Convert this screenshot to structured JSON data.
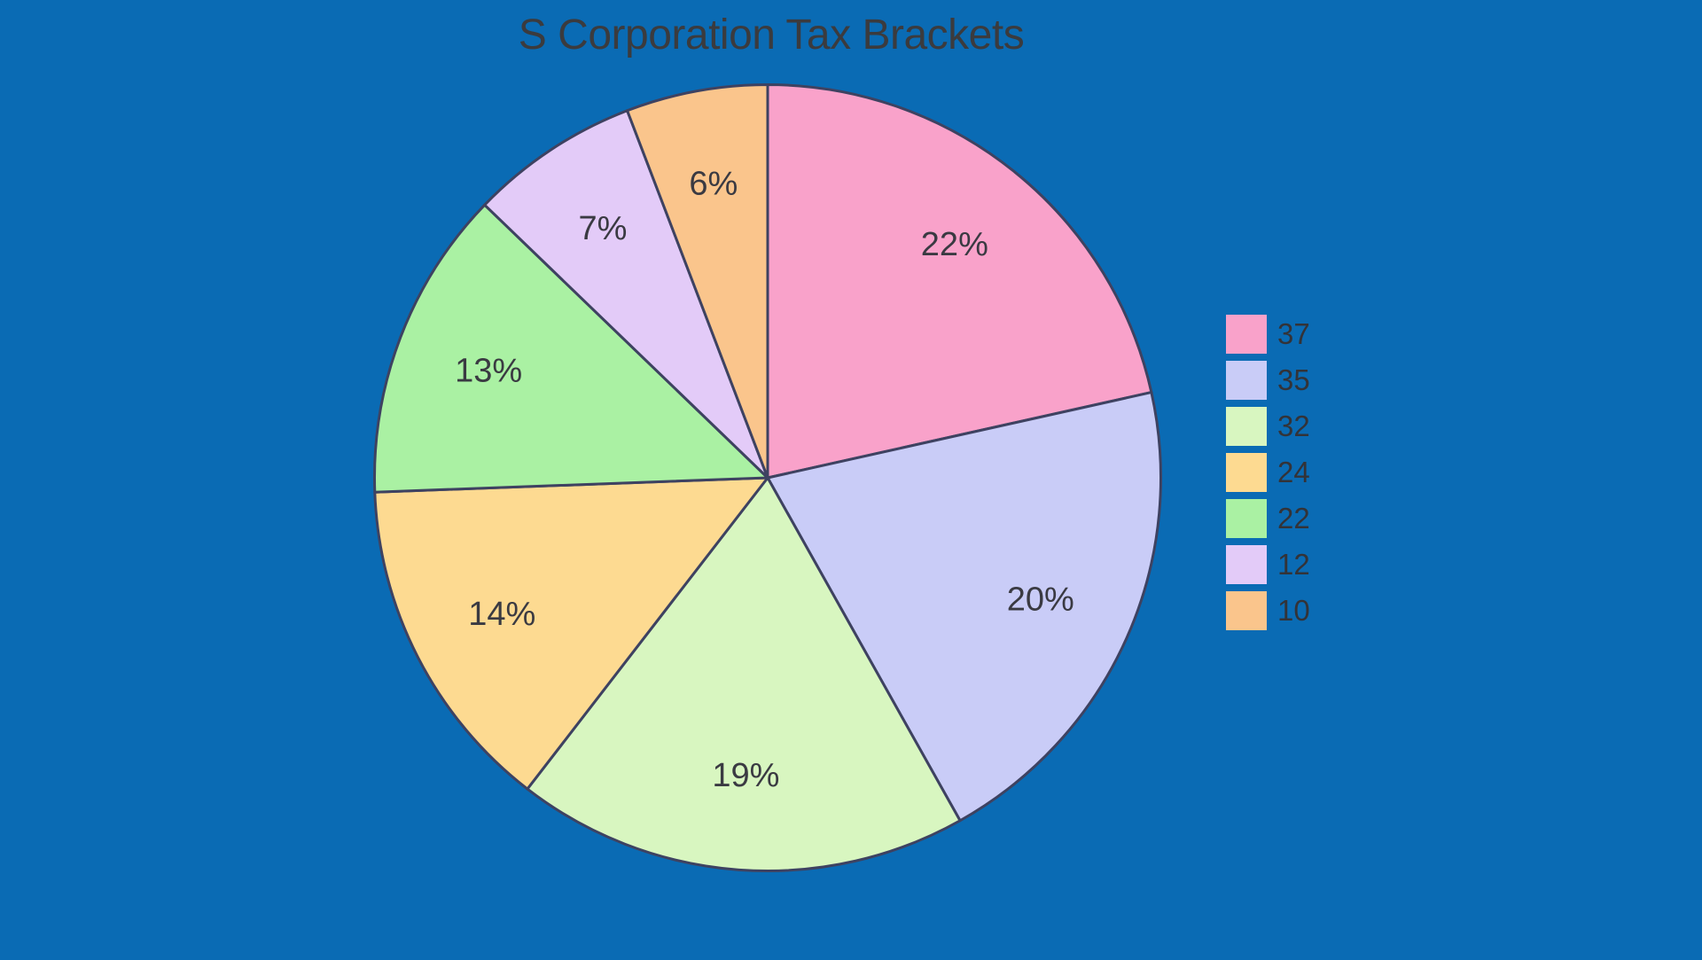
{
  "page": {
    "background_color": "#0A6BB4"
  },
  "chart_data": {
    "type": "pie",
    "title": "S Corporation Tax Brackets",
    "categories": [
      "37",
      "35",
      "32",
      "24",
      "22",
      "12",
      "10"
    ],
    "values": [
      37,
      35,
      32,
      24,
      22,
      12,
      10
    ],
    "percent_labels": [
      "22%",
      "20%",
      "19%",
      "14%",
      "13%",
      "7%",
      "6%"
    ],
    "colors": [
      "#F9A2CA",
      "#C9CCF7",
      "#D8F6C0",
      "#FDDA91",
      "#AAF1A3",
      "#E3CBF8",
      "#FAC58C"
    ],
    "slice_border_color": "#3E4261",
    "label_color": "#3A3A42",
    "title_color": "#3B3B3E",
    "legend_text_color": "#333338",
    "start_angle_deg": -90,
    "direction": "clockwise",
    "legend_position": "right",
    "labels_inside": true
  }
}
